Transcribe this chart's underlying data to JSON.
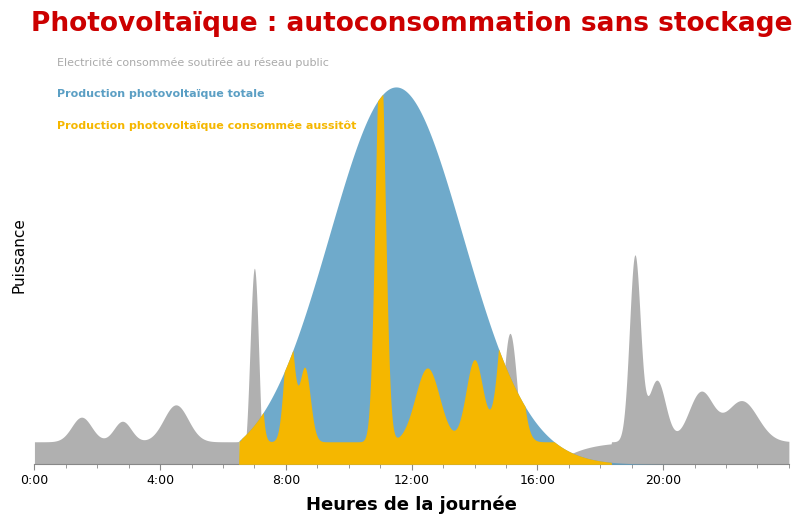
{
  "title": "Photovoltaïque : autoconsommation sans stockage",
  "title_color": "#cc0000",
  "title_fontsize": 19,
  "xlabel": "Heures de la journée",
  "ylabel": "Puissance",
  "xlabel_fontsize": 13,
  "ylabel_fontsize": 11,
  "legend_labels": [
    "Electricité consommée soutirée au réseau public",
    "Production photovoltaïque totale",
    "Production photovoltaïque consommée aussitôt"
  ],
  "legend_colors": [
    "#aaaaaa",
    "#5b9fc4",
    "#f5b700"
  ],
  "x_ticks": [
    0,
    4,
    8,
    12,
    16,
    20
  ],
  "x_tick_labels": [
    "0:00",
    "4:00",
    "8:00",
    "12:00",
    "16:00",
    "20:00"
  ],
  "background_color": "#ffffff",
  "grid_color": "#cccccc",
  "color_gray": "#b0b0b0",
  "color_blue": "#5b9fc4",
  "color_yellow": "#f5b700",
  "xlim": [
    0,
    24
  ],
  "ylim": [
    0,
    1.0
  ]
}
